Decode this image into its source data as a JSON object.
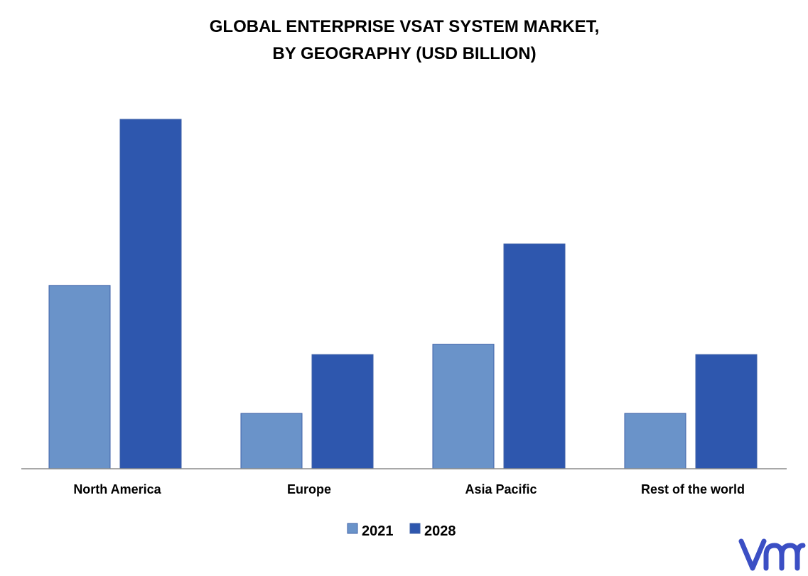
{
  "chart_data": {
    "type": "bar",
    "title": [
      "GLOBAL ENTERPRISE  VSAT SYSTEM MARKET,",
      "BY GEOGRAPHY (USD BILLION)"
    ],
    "xlabel": "",
    "ylabel": "",
    "categories": [
      "North America",
      "Europe",
      "Asia Pacific",
      "Rest of the world"
    ],
    "series": [
      {
        "name": "2021",
        "values": [
          5.3,
          1.6,
          3.6,
          1.6
        ],
        "color": "#6A93C9"
      },
      {
        "name": "2028",
        "values": [
          10.1,
          3.3,
          6.5,
          3.3
        ],
        "color": "#2E57AE"
      }
    ],
    "ylim": [
      0,
      10.1
    ],
    "grid": false,
    "legend_position": "bottom"
  },
  "logo": {
    "text": "vmr",
    "color": "#3B4FC4"
  }
}
